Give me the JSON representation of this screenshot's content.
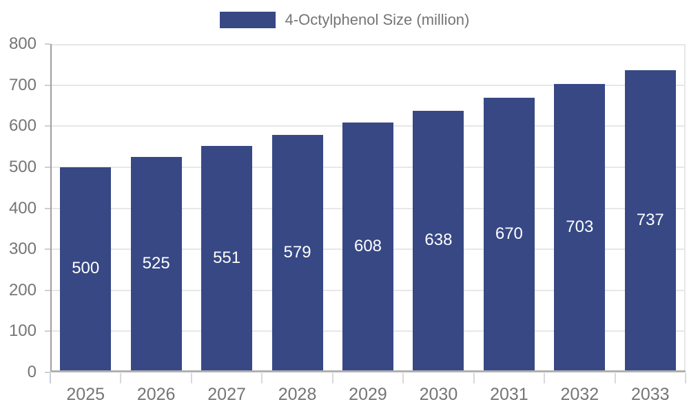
{
  "chart_data": {
    "type": "bar",
    "title": "",
    "series_name": "4-Octylphenol Size (million)",
    "categories": [
      "2025",
      "2026",
      "2027",
      "2028",
      "2029",
      "2030",
      "2031",
      "2032",
      "2033"
    ],
    "values": [
      500,
      525,
      551,
      579,
      608,
      638,
      670,
      703,
      737
    ],
    "xlabel": "",
    "ylabel": "",
    "ylim": [
      0,
      800
    ],
    "yticks": [
      0,
      100,
      200,
      300,
      400,
      500,
      600,
      700,
      800
    ],
    "grid": "horizontal",
    "legend_position": "top-center",
    "bar_color": "#374885",
    "bar_label_color": "#ffffff",
    "axis_text_color": "#757575"
  }
}
